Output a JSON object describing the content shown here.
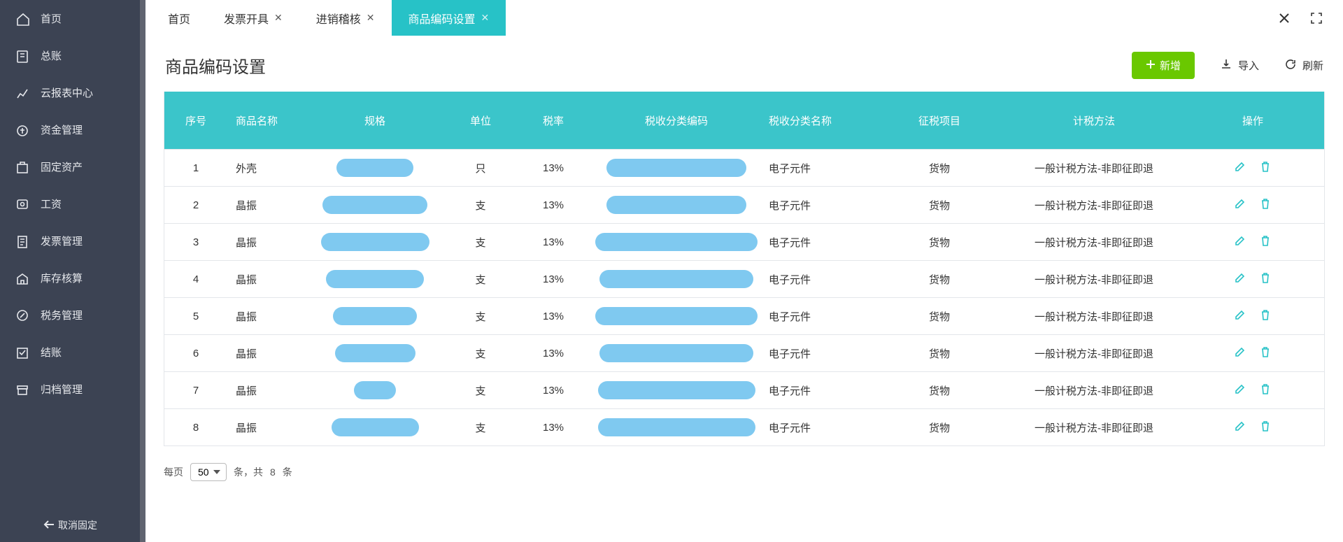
{
  "sidebar": {
    "items": [
      {
        "label": "首页",
        "icon": "home"
      },
      {
        "label": "总账",
        "icon": "ledger"
      },
      {
        "label": "云报表中心",
        "icon": "report"
      },
      {
        "label": "资金管理",
        "icon": "fund"
      },
      {
        "label": "固定资产",
        "icon": "asset"
      },
      {
        "label": "工资",
        "icon": "salary"
      },
      {
        "label": "发票管理",
        "icon": "invoice"
      },
      {
        "label": "库存核算",
        "icon": "inventory"
      },
      {
        "label": "税务管理",
        "icon": "tax"
      },
      {
        "label": "结账",
        "icon": "close-books"
      },
      {
        "label": "归档管理",
        "icon": "archive"
      }
    ],
    "footer_label": "取消固定"
  },
  "tabs": [
    {
      "label": "首页",
      "closable": false,
      "active": false
    },
    {
      "label": "发票开具",
      "closable": true,
      "active": false
    },
    {
      "label": "进销稽核",
      "closable": true,
      "active": false
    },
    {
      "label": "商品编码设置",
      "closable": true,
      "active": true
    }
  ],
  "page": {
    "title": "商品编码设置",
    "add_label": "新增",
    "import_label": "导入",
    "refresh_label": "刷新"
  },
  "table": {
    "columns": [
      "序号",
      "商品名称",
      "规格",
      "单位",
      "税率",
      "税收分类编码",
      "税收分类名称",
      "征税项目",
      "计税方法",
      "操作"
    ],
    "rows": [
      {
        "idx": "1",
        "name": "外壳",
        "spec_w": 110,
        "unit": "只",
        "rate": "13%",
        "code_w": 200,
        "catn": "电子元件",
        "taxi": "货物",
        "meth": "一般计税方法-非即征即退"
      },
      {
        "idx": "2",
        "name": "晶振",
        "spec_w": 150,
        "unit": "支",
        "rate": "13%",
        "code_w": 200,
        "catn": "电子元件",
        "taxi": "货物",
        "meth": "一般计税方法-非即征即退"
      },
      {
        "idx": "3",
        "name": "晶振",
        "spec_w": 155,
        "unit": "支",
        "rate": "13%",
        "code_w": 240,
        "catn": "电子元件",
        "taxi": "货物",
        "meth": "一般计税方法-非即征即退"
      },
      {
        "idx": "4",
        "name": "晶振",
        "spec_w": 140,
        "unit": "支",
        "rate": "13%",
        "code_w": 220,
        "catn": "电子元件",
        "taxi": "货物",
        "meth": "一般计税方法-非即征即退"
      },
      {
        "idx": "5",
        "name": "晶振",
        "spec_w": 120,
        "unit": "支",
        "rate": "13%",
        "code_w": 235,
        "catn": "电子元件",
        "taxi": "货物",
        "meth": "一般计税方法-非即征即退"
      },
      {
        "idx": "6",
        "name": "晶振",
        "spec_w": 115,
        "unit": "支",
        "rate": "13%",
        "code_w": 220,
        "catn": "电子元件",
        "taxi": "货物",
        "meth": "一般计税方法-非即征即退"
      },
      {
        "idx": "7",
        "name": "晶振",
        "spec_w": 60,
        "unit": "支",
        "rate": "13%",
        "code_w": 225,
        "catn": "电子元件",
        "taxi": "货物",
        "meth": "一般计税方法-非即征即退"
      },
      {
        "idx": "8",
        "name": "晶振",
        "spec_w": 125,
        "unit": "支",
        "rate": "13%",
        "code_w": 225,
        "catn": "电子元件",
        "taxi": "货物",
        "meth": "一般计税方法-非即征即退"
      }
    ]
  },
  "pager": {
    "per_page_label": "每页",
    "per_page_value": "50",
    "total_label_prefix": "条，共",
    "total_count": "8",
    "total_label_suffix": "条"
  },
  "colors": {
    "sidebar_bg": "#3c4353",
    "header_bg": "#3bc5ca",
    "tab_active": "#27c2c7",
    "primary_btn": "#6ac800",
    "redact": "#7fc9f0",
    "border": "#e3e6ea"
  }
}
